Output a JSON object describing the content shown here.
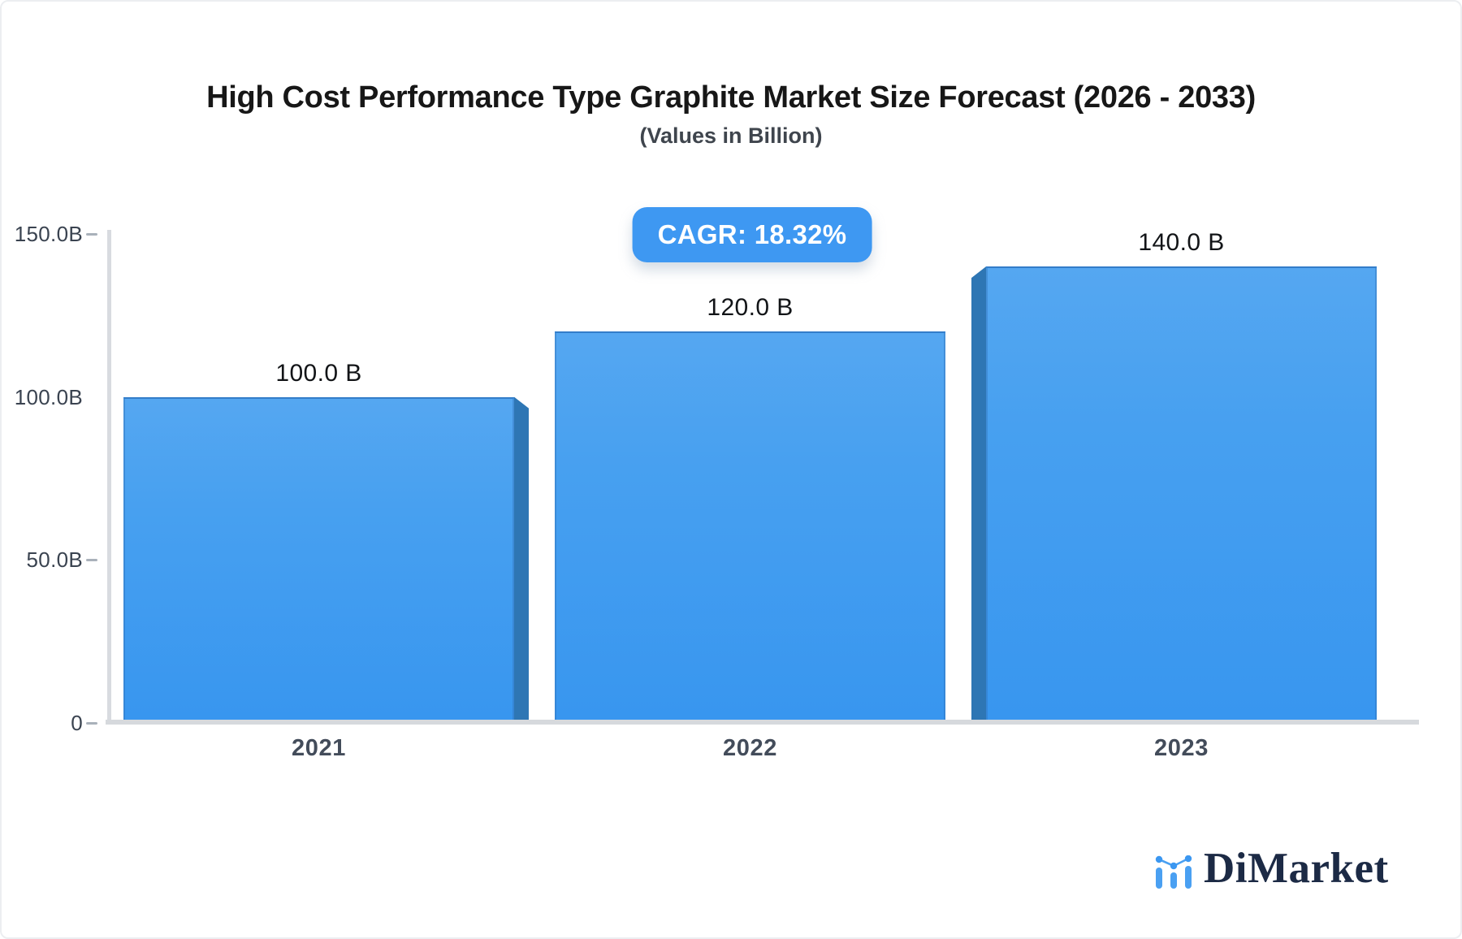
{
  "title": "High Cost Performance Type Graphite Market Size Forecast (2026 - 2033)",
  "subtitle": "(Values in Billion)",
  "badge": {
    "label": "CAGR: 18.32%",
    "color": "#3e98f2"
  },
  "chart_data": {
    "type": "bar",
    "categories": [
      "2021",
      "2022",
      "2023"
    ],
    "values": [
      100.0,
      120.0,
      140.0
    ],
    "bar_labels": [
      "100.0 B",
      "120.0 B",
      "140.0 B"
    ],
    "unit": "Billion",
    "ylim": [
      0,
      150
    ],
    "y_ticks": [
      {
        "value": 0,
        "label": "0",
        "dash": true
      },
      {
        "value": 50,
        "label": "50.0B",
        "dash": true
      },
      {
        "value": 100,
        "label": "100.0B",
        "dash": false
      },
      {
        "value": 150,
        "label": "150.0B",
        "dash": true
      }
    ],
    "grid": false,
    "legend": "none",
    "bar_color_top": "#55a7f1",
    "bar_color_bottom": "#3896ef",
    "bar_side_color": "#2e76b4",
    "bar_border_color": "#3d87d2"
  },
  "logo": {
    "text": "DiMarket",
    "icon": "bar-chart-logo-icon"
  },
  "colors": {
    "axis": "#d7dade",
    "tick_dash": "#a9b1ba",
    "y_label": "#3a4350",
    "x_label": "#434c5a",
    "value_label": "#121417",
    "title": "#171717",
    "subtitle": "#3f454d",
    "badge_bg": "#3e98f2",
    "badge_text": "#ffffff",
    "logo_text": "#1c2a45",
    "logo_blue": "#4aa0f2"
  }
}
